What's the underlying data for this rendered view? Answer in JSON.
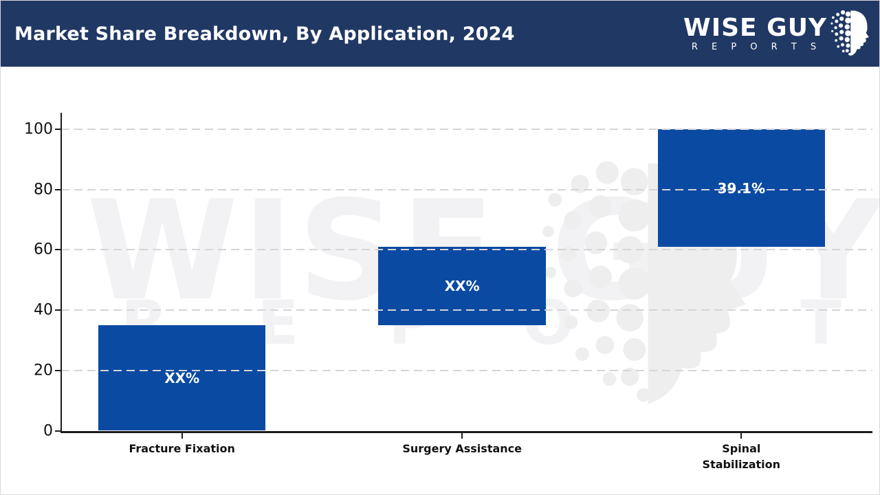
{
  "header": {
    "title": "Market Share Breakdown, By Application, 2024",
    "bg_color": "#203864",
    "logo": {
      "line1": "WISE GUY",
      "line2": "R E P O R T S"
    }
  },
  "watermark": {
    "line1": "WISE GUY",
    "line2": "R E P O R T S"
  },
  "chart_data": {
    "type": "bar",
    "variant": "cumulative-segment-columns",
    "title": "Market Share Breakdown, By Application, 2024",
    "categories": [
      "Fracture Fixation",
      "Surgery Assistance",
      "Spinal Stabilization"
    ],
    "category_label_lines": [
      [
        "Fracture Fixation"
      ],
      [
        "Surgery Assistance"
      ],
      [
        "Spinal",
        "Stabilization"
      ]
    ],
    "series": [
      {
        "name": "Fracture Fixation",
        "start": 0,
        "end": 34.9,
        "value": 34.9,
        "label": "XX%"
      },
      {
        "name": "Surgery Assistance",
        "start": 34.9,
        "end": 60.9,
        "value": 26.0,
        "label": "XX%"
      },
      {
        "name": "Spinal Stabilization",
        "start": 60.9,
        "end": 100,
        "value": 39.1,
        "label": "39.1%"
      }
    ],
    "xlabel": "",
    "ylabel": "",
    "ylim": [
      0,
      100
    ],
    "yticks": [
      0,
      20,
      40,
      60,
      80,
      100
    ],
    "grid": "horizontal dashed, drawn above bars",
    "legend": "none",
    "bar_color": "#0a4aa2",
    "axis_color": "#1c1c1c",
    "label_color_on_bar": "#ffffff"
  }
}
